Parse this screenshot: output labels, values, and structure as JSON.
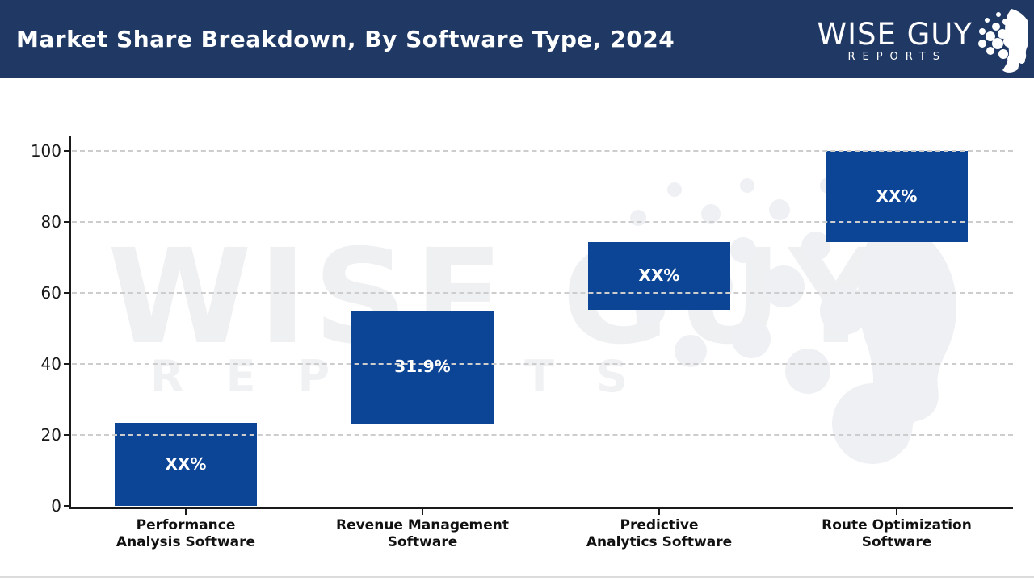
{
  "header": {
    "title": "Market Share Breakdown, By Software Type, 2024",
    "bg_color": "#1f3864",
    "logo": {
      "wordmark": "WISE GUY",
      "subtext": "REPORTS"
    }
  },
  "watermark": {
    "wordmark": "WISE GUY",
    "subtext": "REPORTS"
  },
  "chart_data": {
    "type": "bar",
    "subtype": "floating-waterfall",
    "title": "Market Share Breakdown, By Software Type, 2024",
    "categories": [
      [
        "Performance",
        "Analysis Software"
      ],
      [
        "Revenue Management",
        "Software"
      ],
      [
        "Predictive",
        "Analytics Software"
      ],
      [
        "Route Optimization",
        "Software"
      ]
    ],
    "bars": [
      {
        "name": "Performance Analysis Software",
        "label": "XX%",
        "base": 0,
        "height": 23.3
      },
      {
        "name": "Revenue Management Software",
        "label": "31.9%",
        "base": 23.2,
        "height": 31.9
      },
      {
        "name": "Predictive Analytics Software",
        "label": "XX%",
        "base": 55.2,
        "height": 19.1
      },
      {
        "name": "Route Optimization Software",
        "label": "XX%",
        "base": 74.3,
        "height": 25.7
      }
    ],
    "ylim": [
      0,
      100
    ],
    "yticks": [
      0,
      20,
      40,
      60,
      80,
      100
    ],
    "grid": true,
    "legend": false,
    "colors": {
      "bar": "#0d4596",
      "bar_label": "#ffffff",
      "grid": "#cdcdcd",
      "axis": "#1a1a1a",
      "tick_label": "#1a1a1a",
      "category_label": "#111111"
    }
  }
}
